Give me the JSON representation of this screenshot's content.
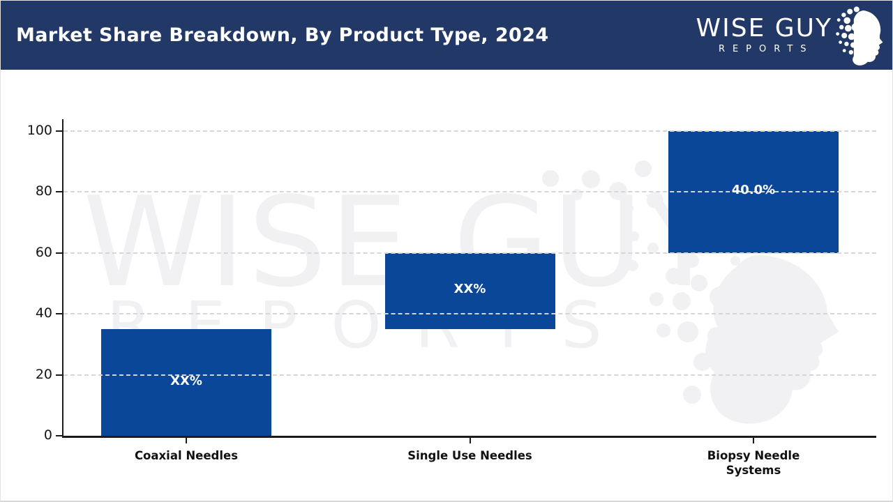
{
  "header": {
    "title": "Market Share Breakdown, By Product Type, 2024",
    "logo_line1": "WISE GUY",
    "logo_line2": "REPORTS",
    "bg_color": "#223967"
  },
  "watermark": {
    "line1": "WISE GUY",
    "line2": "REPORTS",
    "color": "#f1f1f4"
  },
  "chart_data": {
    "type": "bar",
    "variant": "floating-segment-waterfall",
    "title": "Market Share Breakdown, By Product Type, 2024",
    "categories": [
      "Coaxial Needles",
      "Single Use Needles",
      "Biopsy Needle Systems"
    ],
    "tick_labels": [
      "Coaxial Needles",
      "Single Use Needles",
      "Biopsy Needle\nSystems"
    ],
    "segments": [
      {
        "category": "Coaxial Needles",
        "start": 0,
        "end": 35,
        "label": "XX%"
      },
      {
        "category": "Single Use Needles",
        "start": 35,
        "end": 60,
        "label": "XX%"
      },
      {
        "category": "Biopsy Needle Systems",
        "start": 60,
        "end": 100,
        "label": "40.0%"
      }
    ],
    "ylim": [
      0,
      100
    ],
    "yticks": [
      0,
      20,
      40,
      60,
      80,
      100
    ],
    "xlabel": "",
    "ylabel": "",
    "legend": "none",
    "grid": "horizontal dashed gridlines drawn over bars",
    "bar_color": "#0b4798",
    "bar_label_color": "#ffffff",
    "axis_color": "#1b1b1b",
    "gridline_color": "#d6d6d6"
  }
}
